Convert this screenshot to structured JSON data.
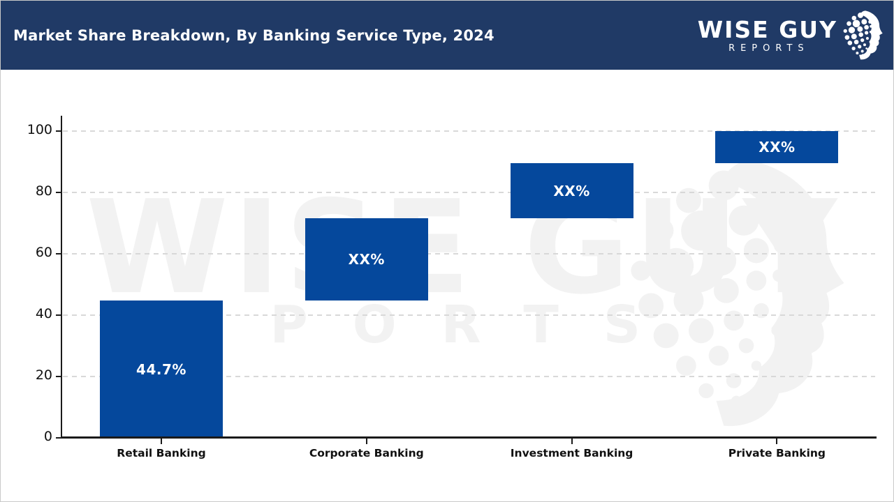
{
  "header": {
    "title": "Market Share Breakdown, By Banking Service Type, 2024",
    "bg_color": "#203a66",
    "logo": {
      "wordmark": "WISE GUY",
      "subtitle": "REPORTS"
    }
  },
  "watermark": {
    "line1": "WISE GUY",
    "line2": "REPORTS"
  },
  "chart_data": {
    "type": "bar",
    "subtype": "waterfall",
    "title": "Market Share Breakdown, By Banking Service Type, 2024",
    "categories": [
      "Retail Banking",
      "Corporate Banking",
      "Investment Banking",
      "Private Banking"
    ],
    "bars": [
      {
        "category": "Retail Banking",
        "start": 0,
        "end": 44.7,
        "delta": 44.7,
        "label": "44.7%"
      },
      {
        "category": "Corporate Banking",
        "start": 44.7,
        "end": 71.5,
        "delta": 26.8,
        "label": "XX%"
      },
      {
        "category": "Investment Banking",
        "start": 71.5,
        "end": 89.5,
        "delta": 18.0,
        "label": "XX%"
      },
      {
        "category": "Private Banking",
        "start": 89.5,
        "end": 100,
        "delta": 10.5,
        "label": "XX%"
      }
    ],
    "yticks": [
      0,
      20,
      40,
      60,
      80,
      100
    ],
    "ylim": [
      0,
      105
    ],
    "xlabel": "",
    "ylabel": "",
    "grid": "horizontal-dashed",
    "legend_position": "none",
    "bar_color": "#05489c",
    "value_label_color": "#ffffff",
    "axis_color": "#1a1a1a"
  }
}
